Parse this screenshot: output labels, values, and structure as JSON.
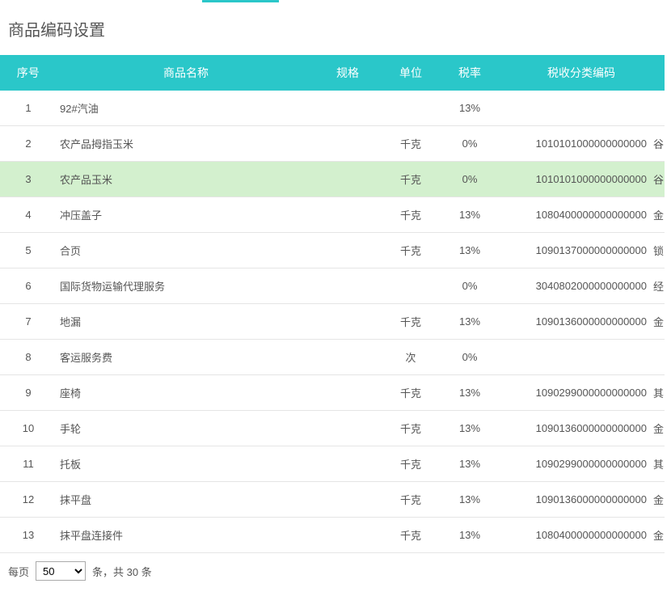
{
  "page": {
    "title": "商品编码设置"
  },
  "table": {
    "columns": [
      "序号",
      "商品名称",
      "规格",
      "单位",
      "税率",
      "税收分类编码"
    ],
    "rows": [
      {
        "seq": "1",
        "name": "92#汽油",
        "spec": "",
        "unit": "",
        "rate": "13%",
        "code": "",
        "extra": ""
      },
      {
        "seq": "2",
        "name": "农产品拇指玉米",
        "spec": "",
        "unit": "千克",
        "rate": "0%",
        "code": "1010101000000000000",
        "extra": "谷"
      },
      {
        "seq": "3",
        "name": "农产品玉米",
        "spec": "",
        "unit": "千克",
        "rate": "0%",
        "code": "1010101000000000000",
        "extra": "谷",
        "highlight": true
      },
      {
        "seq": "4",
        "name": "冲压盖子",
        "spec": "",
        "unit": "千克",
        "rate": "13%",
        "code": "1080400000000000000",
        "extra": "金"
      },
      {
        "seq": "5",
        "name": "合页",
        "spec": "",
        "unit": "千克",
        "rate": "13%",
        "code": "1090137000000000000",
        "extra": "锁"
      },
      {
        "seq": "6",
        "name": "国际货物运输代理服务",
        "spec": "",
        "unit": "",
        "rate": "0%",
        "code": "3040802000000000000",
        "extra": "经"
      },
      {
        "seq": "7",
        "name": "地漏",
        "spec": "",
        "unit": "千克",
        "rate": "13%",
        "code": "1090136000000000000",
        "extra": "金"
      },
      {
        "seq": "8",
        "name": "客运服务费",
        "spec": "",
        "unit": "次",
        "rate": "0%",
        "code": "",
        "extra": ""
      },
      {
        "seq": "9",
        "name": "座椅",
        "spec": "",
        "unit": "千克",
        "rate": "13%",
        "code": "1090299000000000000",
        "extra": "其"
      },
      {
        "seq": "10",
        "name": "手轮",
        "spec": "",
        "unit": "千克",
        "rate": "13%",
        "code": "1090136000000000000",
        "extra": "金"
      },
      {
        "seq": "11",
        "name": "托板",
        "spec": "",
        "unit": "千克",
        "rate": "13%",
        "code": "1090299000000000000",
        "extra": "其"
      },
      {
        "seq": "12",
        "name": "抹平盘",
        "spec": "",
        "unit": "千克",
        "rate": "13%",
        "code": "1090136000000000000",
        "extra": "金"
      },
      {
        "seq": "13",
        "name": "抹平盘连接件",
        "spec": "",
        "unit": "千克",
        "rate": "13%",
        "code": "1080400000000000000",
        "extra": "金"
      }
    ]
  },
  "pagination": {
    "per_page_label": "每页",
    "options": [
      "50"
    ],
    "selected": "50",
    "summary_prefix": "条，共",
    "total": "30",
    "summary_suffix": "条"
  }
}
